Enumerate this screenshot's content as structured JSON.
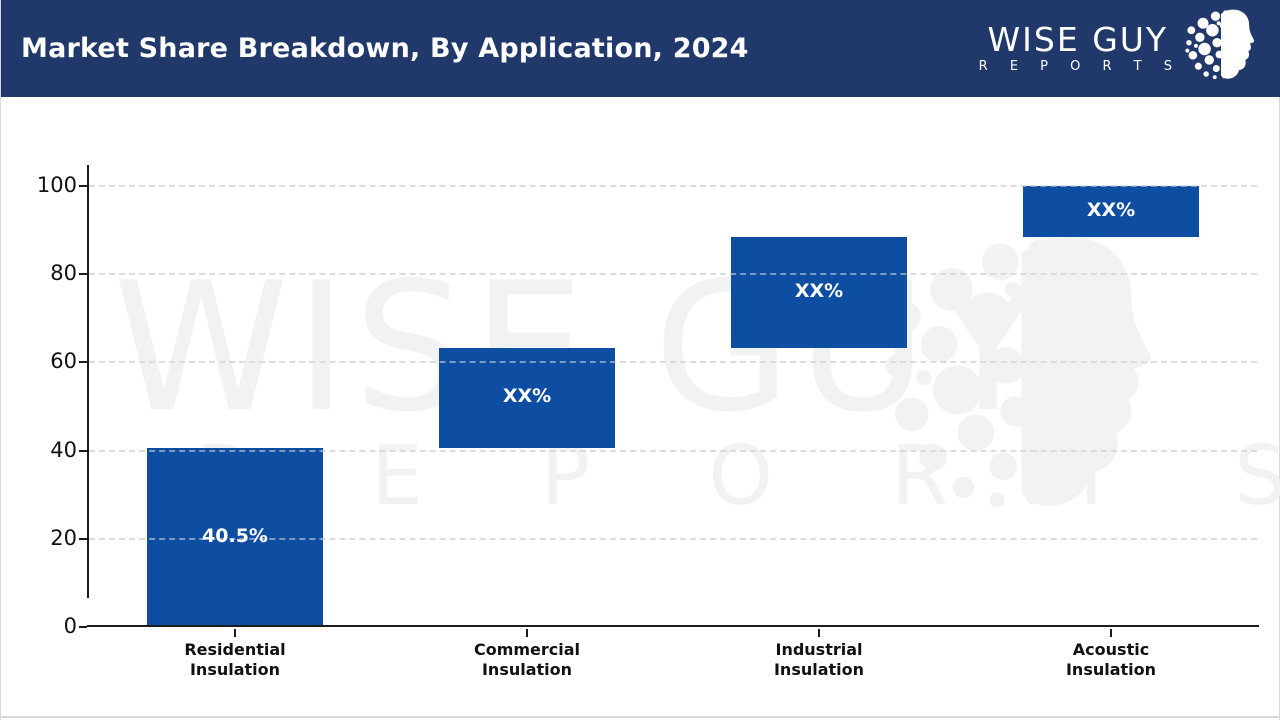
{
  "header": {
    "title": "Market Share Breakdown, By Application, 2024",
    "bg_color": "#20386a",
    "logo": {
      "wordmark": "WISE GUY",
      "subtext": "R E P O R T S"
    }
  },
  "watermark": {
    "wordmark": "WISE GUY",
    "subtext": "REPORTS"
  },
  "chart_data": {
    "type": "bar",
    "variant": "waterfall",
    "title": "Market Share Breakdown, By Application, 2024",
    "xlabel": "",
    "ylabel": "",
    "ylim": [
      0,
      105
    ],
    "yticks": [
      0,
      20,
      40,
      60,
      80,
      100
    ],
    "grid": "horizontal-dashed",
    "legend": "none",
    "bar_color": "#0d4da2",
    "bar_label_color": "#ffffff",
    "categories": [
      "Residential Insulation",
      "Commercial Insulation",
      "Industrial Insulation",
      "Acoustic Insulation"
    ],
    "category_lines": [
      [
        "Residential",
        "Insulation"
      ],
      [
        "Commercial",
        "Insulation"
      ],
      [
        "Industrial",
        "Insulation"
      ],
      [
        "Acoustic",
        "Insulation"
      ]
    ],
    "bars": [
      {
        "label": "40.5%",
        "start": 0,
        "end": 40.5
      },
      {
        "label": "XX%",
        "start": 40.5,
        "end": 63.3
      },
      {
        "label": "XX%",
        "start": 63.3,
        "end": 88.4
      },
      {
        "label": "XX%",
        "start": 88.4,
        "end": 100
      }
    ]
  }
}
